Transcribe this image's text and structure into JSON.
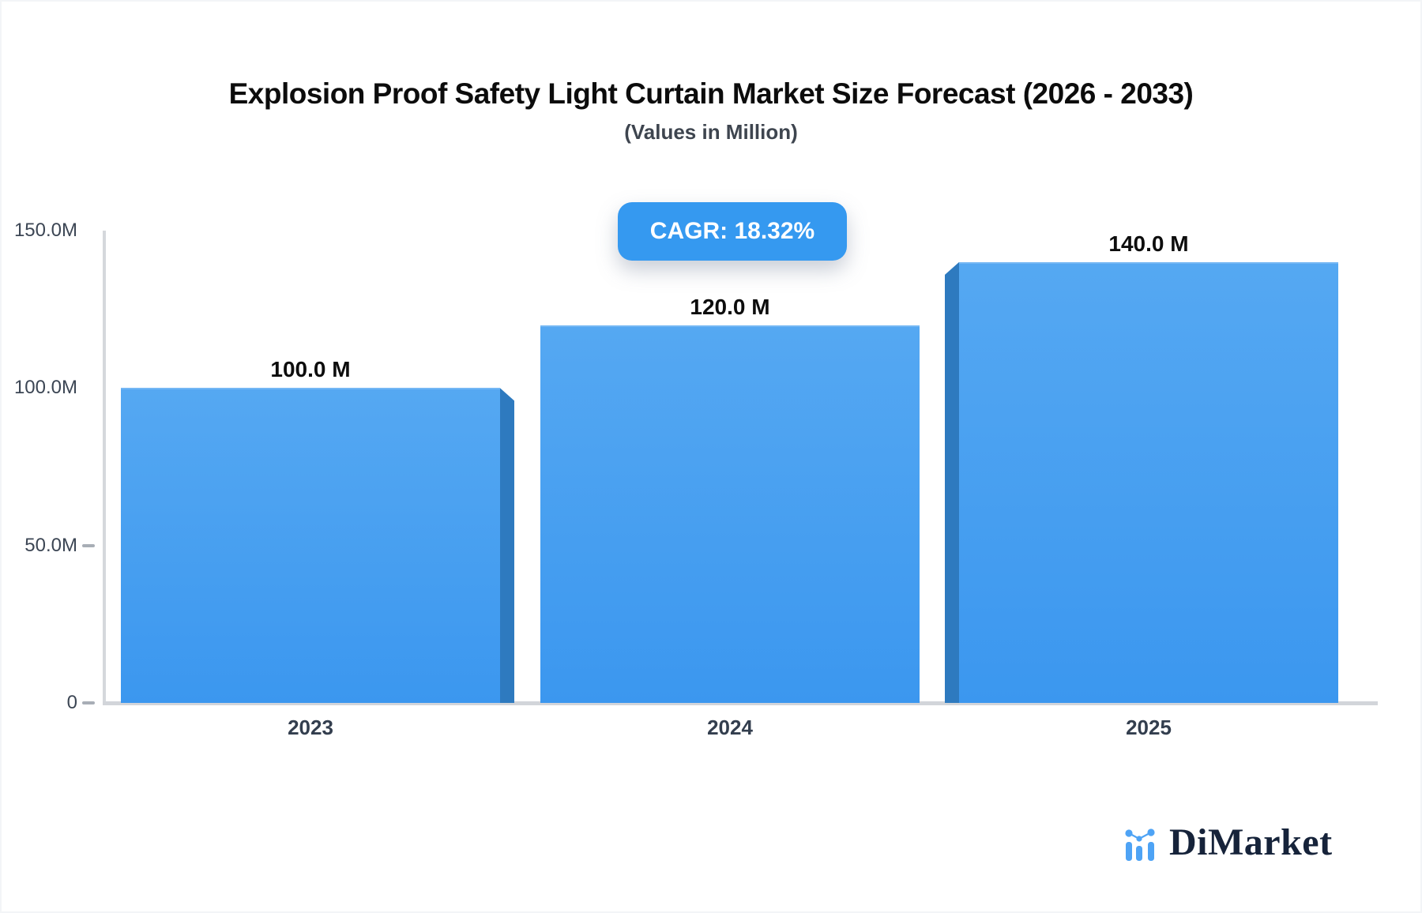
{
  "title": "Explosion Proof Safety Light Curtain Market Size Forecast (2026 - 2033)",
  "subtitle": "(Values in Million)",
  "cagr_badge": "CAGR: 18.32%",
  "chart_data": {
    "type": "bar",
    "categories": [
      "2023",
      "2024",
      "2025"
    ],
    "values": [
      100.0,
      120.0,
      140.0
    ],
    "value_labels": [
      "100.0 M",
      "120.0 M",
      "140.0 M"
    ],
    "ylim": [
      0,
      150
    ],
    "y_ticks": [
      {
        "label": "150.0M",
        "value": 150,
        "dash": false
      },
      {
        "label": "100.0M",
        "value": 100,
        "dash": false
      },
      {
        "label": "50.0M",
        "value": 50,
        "dash": true
      },
      {
        "label": "0",
        "value": 0,
        "dash": true
      }
    ],
    "grid": false,
    "legend": false,
    "bar_color_top": "#55A8F2",
    "bar_color_bottom": "#3B97EF",
    "bar_side_color": "#2E7ABF"
  },
  "colors": {
    "badge_bg": "#3599F0",
    "badge_text": "#FFFFFF",
    "axis_line": "#D5D8DC"
  },
  "branding": {
    "name": "DiMarket",
    "icon": "bar-chart-logo-icon",
    "text_color": "#16233A",
    "accent_color": "#4EA3F5"
  }
}
